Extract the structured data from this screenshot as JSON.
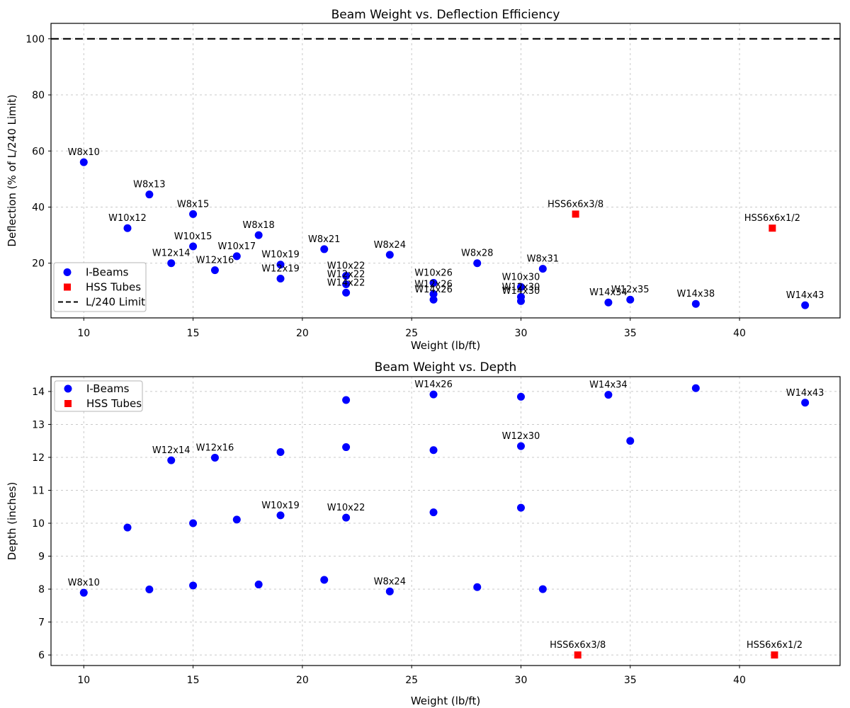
{
  "figure": {
    "background": "#ffffff",
    "marker_colors": {
      "ibeam": "#0000ff",
      "hss": "#ff0000",
      "limit": "#000000",
      "grid": "#c9c9c9"
    }
  },
  "chart_data": [
    {
      "type": "scatter",
      "title": "Beam Weight vs. Deflection Efficiency",
      "xlabel": "Weight (lb/ft)",
      "ylabel": "Deflection (% of L/240 Limit)",
      "xlim": [
        8.5,
        44.6
      ],
      "ylim": [
        0.5,
        105.5
      ],
      "xticks": [
        10,
        15,
        20,
        25,
        30,
        35,
        40
      ],
      "yticks": [
        20,
        40,
        60,
        80,
        100
      ],
      "grid": true,
      "hline": {
        "y": 100,
        "color": "#000000",
        "style": "dashed",
        "label": "L/240 Limit"
      },
      "legend": {
        "position": "lower-left",
        "entries": [
          {
            "label": "I-Beams",
            "marker": "circle",
            "color": "#0000ff"
          },
          {
            "label": "HSS Tubes",
            "marker": "square",
            "color": "#ff0000"
          },
          {
            "label": "L/240 Limit",
            "marker": "dashed-line",
            "color": "#000000"
          }
        ]
      },
      "series": [
        {
          "name": "I-Beams",
          "marker": "circle",
          "color": "#0000ff",
          "points": [
            {
              "label": "W8x10",
              "x": 10,
              "y": 56,
              "labeled": true
            },
            {
              "label": "W10x12",
              "x": 12,
              "y": 32.5,
              "labeled": true
            },
            {
              "label": "W8x13",
              "x": 13,
              "y": 44.5,
              "labeled": true
            },
            {
              "label": "W12x14",
              "x": 14,
              "y": 20,
              "labeled": true
            },
            {
              "label": "W8x15",
              "x": 15,
              "y": 37.5,
              "labeled": true
            },
            {
              "label": "W10x15",
              "x": 15,
              "y": 26,
              "labeled": true
            },
            {
              "label": "W12x16",
              "x": 16,
              "y": 17.5,
              "labeled": true
            },
            {
              "label": "W10x17",
              "x": 17,
              "y": 22.5,
              "labeled": true
            },
            {
              "label": "W8x18",
              "x": 18,
              "y": 30,
              "labeled": true
            },
            {
              "label": "W10x19",
              "x": 19,
              "y": 19.5,
              "labeled": true
            },
            {
              "label": "W12x19",
              "x": 19,
              "y": 14.5,
              "labeled": true
            },
            {
              "label": "W8x21",
              "x": 21,
              "y": 25,
              "labeled": true
            },
            {
              "label": "W10x22",
              "x": 22,
              "y": 15.5,
              "labeled": true
            },
            {
              "label": "W12x22",
              "x": 22,
              "y": 12.5,
              "labeled": true
            },
            {
              "label": "W14x22",
              "x": 22,
              "y": 9.5,
              "labeled": true
            },
            {
              "label": "W8x24",
              "x": 24,
              "y": 23,
              "labeled": true
            },
            {
              "label": "W10x26",
              "x": 26,
              "y": 13,
              "labeled": true
            },
            {
              "label": "W12x26",
              "x": 26,
              "y": 9,
              "labeled": true
            },
            {
              "label": "W14x26",
              "x": 26,
              "y": 7,
              "labeled": true
            },
            {
              "label": "W8x28",
              "x": 28,
              "y": 20,
              "labeled": true
            },
            {
              "label": "W10x30",
              "x": 30,
              "y": 11.5,
              "labeled": true
            },
            {
              "label": "W12x30",
              "x": 30,
              "y": 8,
              "labeled": true
            },
            {
              "label": "W14x30",
              "x": 30,
              "y": 6.5,
              "labeled": true
            },
            {
              "label": "W8x31",
              "x": 31,
              "y": 18,
              "labeled": true
            },
            {
              "label": "W14x34",
              "x": 34,
              "y": 6,
              "labeled": true
            },
            {
              "label": "W12x35",
              "x": 35,
              "y": 7,
              "labeled": true
            },
            {
              "label": "W14x38",
              "x": 38,
              "y": 5.5,
              "labeled": true
            },
            {
              "label": "W14x43",
              "x": 43,
              "y": 5,
              "labeled": true
            }
          ]
        },
        {
          "name": "HSS Tubes",
          "marker": "square",
          "color": "#ff0000",
          "points": [
            {
              "label": "HSS6x6x3/8",
              "x": 32.5,
              "y": 37.5,
              "labeled": true
            },
            {
              "label": "HSS6x6x1/2",
              "x": 41.5,
              "y": 32.5,
              "labeled": true
            }
          ]
        }
      ]
    },
    {
      "type": "scatter",
      "title": "Beam Weight vs. Depth",
      "xlabel": "Weight (lb/ft)",
      "ylabel": "Depth (inches)",
      "xlim": [
        8.5,
        44.6
      ],
      "ylim": [
        5.68,
        14.45
      ],
      "xticks": [
        10,
        15,
        20,
        25,
        30,
        35,
        40
      ],
      "yticks": [
        6,
        7,
        8,
        9,
        10,
        11,
        12,
        13,
        14
      ],
      "grid": true,
      "legend": {
        "position": "upper-left",
        "entries": [
          {
            "label": "I-Beams",
            "marker": "circle",
            "color": "#0000ff"
          },
          {
            "label": "HSS Tubes",
            "marker": "square",
            "color": "#ff0000"
          }
        ]
      },
      "series": [
        {
          "name": "I-Beams",
          "marker": "circle",
          "color": "#0000ff",
          "points": [
            {
              "label": "W8x10",
              "x": 10,
              "y": 7.89,
              "labeled": true
            },
            {
              "label": "W10x12",
              "x": 12,
              "y": 9.87,
              "labeled": false
            },
            {
              "label": "W8x13",
              "x": 13,
              "y": 7.99,
              "labeled": false
            },
            {
              "label": "W12x14",
              "x": 14,
              "y": 11.91,
              "labeled": true
            },
            {
              "label": "W8x15",
              "x": 15,
              "y": 8.11,
              "labeled": false
            },
            {
              "label": "W10x15",
              "x": 15,
              "y": 10.0,
              "labeled": false
            },
            {
              "label": "W12x16",
              "x": 16,
              "y": 11.99,
              "labeled": true
            },
            {
              "label": "W10x17",
              "x": 17,
              "y": 10.11,
              "labeled": false
            },
            {
              "label": "W8x18",
              "x": 18,
              "y": 8.14,
              "labeled": false
            },
            {
              "label": "W10x19",
              "x": 19,
              "y": 10.24,
              "labeled": true
            },
            {
              "label": "W12x19",
              "x": 19,
              "y": 12.16,
              "labeled": false
            },
            {
              "label": "W8x21",
              "x": 21,
              "y": 8.28,
              "labeled": false
            },
            {
              "label": "W10x22",
              "x": 22,
              "y": 10.17,
              "labeled": true
            },
            {
              "label": "W12x22",
              "x": 22,
              "y": 12.31,
              "labeled": false
            },
            {
              "label": "W14x22",
              "x": 22,
              "y": 13.74,
              "labeled": false
            },
            {
              "label": "W8x24",
              "x": 24,
              "y": 7.93,
              "labeled": true
            },
            {
              "label": "W10x26",
              "x": 26,
              "y": 10.33,
              "labeled": false
            },
            {
              "label": "W12x26",
              "x": 26,
              "y": 12.22,
              "labeled": false
            },
            {
              "label": "W14x26",
              "x": 26,
              "y": 13.91,
              "labeled": true
            },
            {
              "label": "W8x28",
              "x": 28,
              "y": 8.06,
              "labeled": false
            },
            {
              "label": "W10x30",
              "x": 30,
              "y": 10.47,
              "labeled": false
            },
            {
              "label": "W12x30",
              "x": 30,
              "y": 12.34,
              "labeled": true
            },
            {
              "label": "W14x30",
              "x": 30,
              "y": 13.84,
              "labeled": false
            },
            {
              "label": "W8x31",
              "x": 31,
              "y": 8.0,
              "labeled": false
            },
            {
              "label": "W14x34",
              "x": 34,
              "y": 13.9,
              "labeled": true
            },
            {
              "label": "W12x35",
              "x": 35,
              "y": 12.5,
              "labeled": false
            },
            {
              "label": "W14x38",
              "x": 38,
              "y": 14.1,
              "labeled": false
            },
            {
              "label": "W14x43",
              "x": 43,
              "y": 13.66,
              "labeled": true
            }
          ]
        },
        {
          "name": "HSS Tubes",
          "marker": "square",
          "color": "#ff0000",
          "points": [
            {
              "label": "HSS6x6x3/8",
              "x": 32.6,
              "y": 6.0,
              "labeled": true
            },
            {
              "label": "HSS6x6x1/2",
              "x": 41.6,
              "y": 6.0,
              "labeled": true
            }
          ]
        }
      ]
    }
  ]
}
